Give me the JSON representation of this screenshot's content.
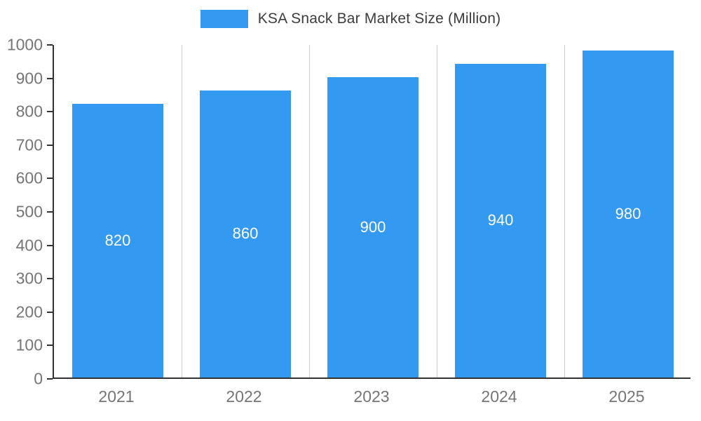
{
  "chart_data": {
    "type": "bar",
    "title": "KSA Snack Bar Market Size (Million)",
    "categories": [
      "2021",
      "2022",
      "2023",
      "2024",
      "2025"
    ],
    "values": [
      820,
      860,
      900,
      940,
      980
    ],
    "xlabel": "",
    "ylabel": "",
    "ylim": [
      0,
      1000
    ],
    "ytick_step": 100,
    "legend_position": "top",
    "grid": "vertical-category-separators",
    "colors": {
      "bar": "#3499F0",
      "bar_label": "#ffffff",
      "axis_text": "#757575",
      "legend_text": "#3c3c3c",
      "gridline": "#cccccc",
      "axis_line": "#333333"
    }
  }
}
